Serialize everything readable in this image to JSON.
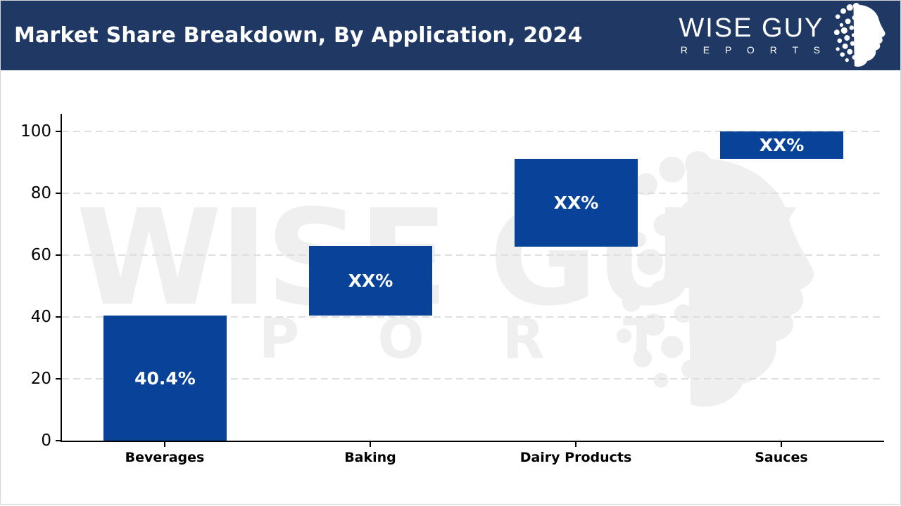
{
  "header": {
    "title": "Market Share Breakdown, By Application, 2024",
    "logo": {
      "line1": "WISE GUY",
      "line2": "R E P O R T S"
    }
  },
  "watermark": {
    "line1": "WISE GUY",
    "line2": "P O R T S"
  },
  "colors": {
    "header_bg": "#1f3864",
    "bar": "#084299",
    "bar_label": "#ffffff",
    "gridline": "#dedede",
    "axis": "#000000",
    "watermark": "#efefef"
  },
  "chart_data": {
    "type": "waterfall",
    "title": "Market Share Breakdown, By Application, 2024",
    "categories": [
      "Beverages",
      "Baking",
      "Dairy Products",
      "Sauces"
    ],
    "segments": [
      {
        "category": "Beverages",
        "start": 0,
        "end": 40.4,
        "label": "40.4%"
      },
      {
        "category": "Baking",
        "start": 40.4,
        "end": 62.9,
        "label": "XX%"
      },
      {
        "category": "Dairy Products",
        "start": 62.9,
        "end": 91.2,
        "label": "XX%"
      },
      {
        "category": "Sauces",
        "start": 91.2,
        "end": 100,
        "label": "XX%"
      }
    ],
    "ylim": [
      0,
      100
    ],
    "y_ticks": [
      0,
      20,
      40,
      60,
      80,
      100
    ],
    "xlabel": "",
    "ylabel": "",
    "grid": "horizontal-dashed",
    "legend": "none"
  }
}
